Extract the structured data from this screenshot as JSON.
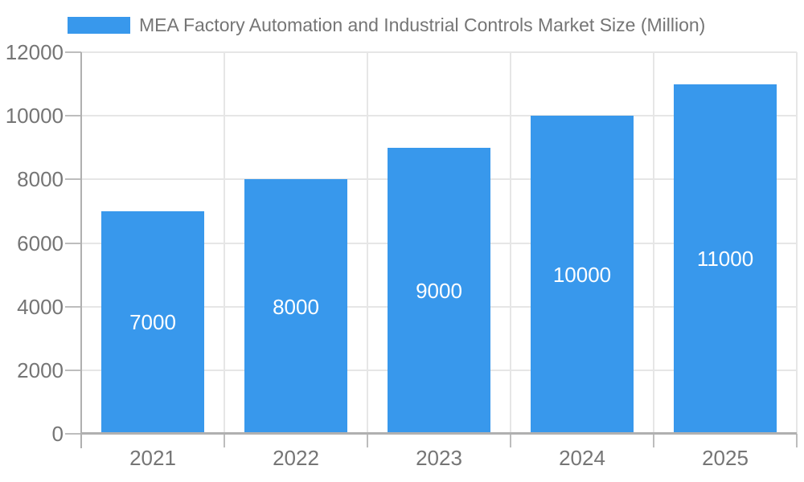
{
  "chart_data": {
    "type": "bar",
    "title": "",
    "legend": {
      "position": "top",
      "label": "MEA Factory Automation and Industrial Controls Market Size (Million)"
    },
    "categories": [
      "2021",
      "2022",
      "2023",
      "2024",
      "2025"
    ],
    "series": [
      {
        "name": "MEA Factory Automation and Industrial Controls Market Size (Million)",
        "values": [
          7000,
          8000,
          9000,
          10000,
          11000
        ]
      }
    ],
    "bar_value_labels": [
      "7000",
      "8000",
      "9000",
      "10000",
      "11000"
    ],
    "xlabel": "",
    "ylabel": "",
    "ylim": [
      0,
      12000
    ],
    "yticks": [
      0,
      2000,
      4000,
      6000,
      8000,
      10000,
      12000
    ],
    "grid": true,
    "colors": {
      "bar": "#3898ec",
      "bar_label": "#ffffff",
      "axis_text": "#757575",
      "grid_line": "#e6e6e6",
      "axis_line": "#b0b0b0",
      "tick": "#bdbdbd",
      "background": "#ffffff"
    }
  }
}
